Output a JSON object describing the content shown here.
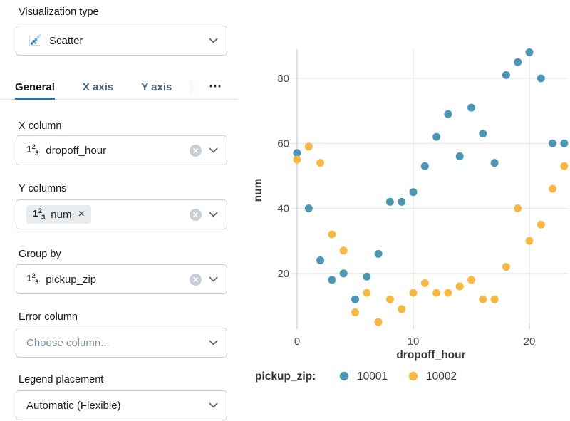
{
  "panel": {
    "viz_type": {
      "label": "Visualization type",
      "value": "Scatter"
    },
    "tabs": {
      "items": [
        "General",
        "X axis",
        "Y axis"
      ],
      "active": "General",
      "overflow": "⋯"
    },
    "fields": {
      "x_column": {
        "label": "X column",
        "value": "dropoff_hour"
      },
      "y_columns": {
        "label": "Y columns",
        "chip": {
          "value": "num",
          "remove": "×"
        }
      },
      "group_by": {
        "label": "Group by",
        "value": "pickup_zip"
      },
      "error_column": {
        "label": "Error column",
        "placeholder": "Choose column..."
      },
      "legend_placement": {
        "label": "Legend placement",
        "value": "Automatic (Flexible)"
      }
    },
    "icons": {
      "viz_type": "scatter-icon",
      "column_type": "number-type-icon",
      "clear": "circle-x-icon",
      "dropdown": "chevron-down-icon",
      "overflow": "ellipsis-icon"
    },
    "accent_color": "#2272b4"
  },
  "chart_data": {
    "type": "scatter",
    "title": "",
    "xlabel": "dropoff_hour",
    "ylabel": "num",
    "legend_title": "pickup_zip:",
    "legend_position": "bottom",
    "grid": true,
    "x": [
      0,
      1,
      2,
      3,
      4,
      5,
      6,
      7,
      8,
      9,
      10,
      11,
      12,
      13,
      14,
      15,
      16,
      17,
      18,
      19,
      20,
      21,
      22,
      23
    ],
    "series": [
      {
        "name": "10001",
        "color": "#4c96b5",
        "values": [
          57,
          40,
          24,
          18,
          20,
          12,
          19,
          26,
          42,
          42,
          45,
          53,
          62,
          69,
          56,
          71,
          63,
          54,
          81,
          85,
          88,
          80,
          60,
          60
        ]
      },
      {
        "name": "10002",
        "color": "#f8b843",
        "values": [
          55,
          59,
          54,
          32,
          27,
          8,
          14,
          5,
          12,
          9,
          14,
          17,
          14,
          14,
          16,
          18,
          12,
          12,
          22,
          40,
          30,
          35,
          46,
          53
        ]
      }
    ],
    "x_ticks": [
      0,
      10,
      20
    ],
    "y_ticks": [
      20,
      40,
      60,
      80
    ],
    "xlim": [
      -4.4,
      23.6
    ],
    "ylim": [
      4.4,
      89
    ]
  }
}
